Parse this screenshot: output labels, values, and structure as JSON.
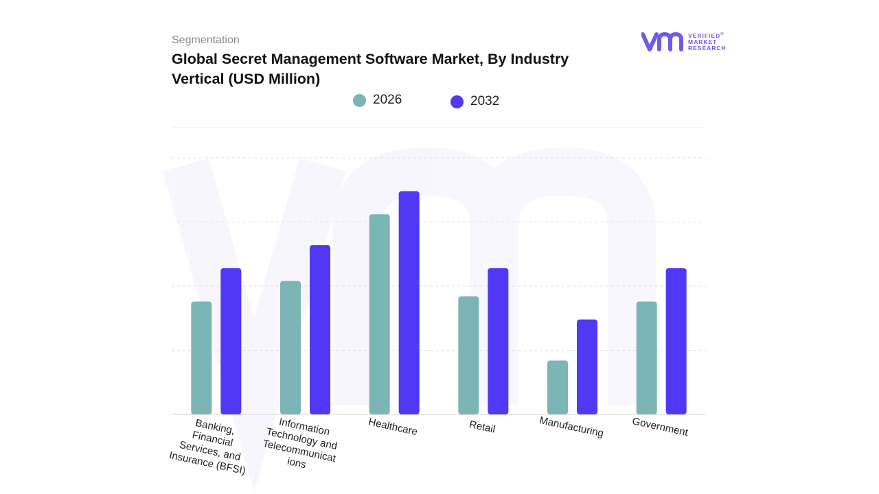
{
  "header": {
    "subtitle": "Segmentation",
    "title": "Global Secret Management Software Market, By Industry Vertical (USD Million)"
  },
  "logo": {
    "line1": "VERIFIED",
    "line2": "MARKET",
    "line3": "RESEARCH",
    "mark": "®"
  },
  "colors": {
    "series_2026": "#7bb5b6",
    "series_2032": "#5038f5",
    "logo": "#6e5ce8",
    "grid": "#dcdcdc"
  },
  "chart_data": {
    "type": "bar",
    "title": "Global Secret Management Software Market, By Industry Vertical (USD Million)",
    "xlabel": "",
    "ylabel": "",
    "ylim": [
      0,
      100
    ],
    "grid": true,
    "legend": "top-center",
    "categories": [
      "Banking,\nFinancial\nServices, and\nInsurance (BFSI)",
      "Information\nTechnology and\nTelecommunicat\nions",
      "Healthcare",
      "Retail",
      "Manufacturing",
      "Government"
    ],
    "series": [
      {
        "name": "2026",
        "values": [
          44,
          52,
          78,
          46,
          21,
          44
        ]
      },
      {
        "name": "2032",
        "values": [
          57,
          66,
          87,
          57,
          37,
          57
        ]
      }
    ]
  }
}
